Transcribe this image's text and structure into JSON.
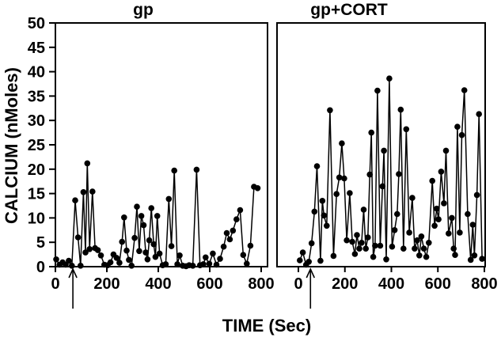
{
  "figure": {
    "x_axis_label": "TIME (Sec)",
    "y_axis_label": "CALCIUM (nMoles)"
  },
  "colors": {
    "trace": "#000000",
    "marker": "#000000",
    "axis": "#000000",
    "background": "#ffffff"
  },
  "chart_data": [
    {
      "type": "line",
      "title": "gp",
      "xlabel": "TIME (Sec)",
      "ylabel": "CALCIUM (nMoles)",
      "xlim": [
        0,
        800
      ],
      "ylim": [
        0,
        50
      ],
      "x_ticks": [
        0,
        200,
        400,
        600,
        800
      ],
      "y_ticks": [
        0,
        5,
        10,
        15,
        20,
        25,
        30,
        35,
        40,
        45,
        50
      ],
      "show_y_tick_labels": true,
      "grid": false,
      "marker": "filled-circle",
      "stimulus_arrow_x": 68,
      "x": [
        3,
        16,
        28,
        40,
        52,
        64,
        77,
        88,
        98,
        109,
        117,
        124,
        133,
        144,
        154,
        165,
        177,
        190,
        203,
        214,
        226,
        238,
        249,
        259,
        267,
        277,
        286,
        296,
        308,
        317,
        326,
        334,
        343,
        351,
        358,
        365,
        373,
        382,
        389,
        396,
        405,
        417,
        429,
        441,
        451,
        462,
        474,
        483,
        495,
        508,
        520,
        534,
        549,
        562,
        575,
        584,
        598,
        612,
        626,
        640,
        654,
        666,
        678,
        690,
        704,
        718,
        730,
        744,
        758,
        772,
        786
      ],
      "y": [
        1.5,
        0.4,
        0.9,
        0.4,
        1.2,
        0.2,
        13.6,
        6.0,
        0.2,
        15.3,
        2.9,
        21.2,
        3.6,
        15.4,
        3.8,
        3.4,
        2.3,
        0.4,
        0.3,
        0.9,
        2.5,
        1.8,
        0.8,
        5.1,
        10.1,
        3.3,
        1.4,
        0.2,
        5.9,
        12.3,
        3.2,
        10.4,
        8.5,
        2.9,
        1.5,
        5.4,
        12.0,
        4.6,
        2.0,
        10.4,
        2.7,
        0.3,
        0.5,
        13.9,
        4.2,
        19.7,
        0.5,
        2.3,
        0.2,
        0.1,
        0.3,
        0.2,
        19.9,
        0.3,
        0.5,
        1.9,
        0.6,
        2.7,
        0.4,
        1.6,
        4.1,
        6.9,
        5.6,
        7.4,
        9.7,
        11.6,
        2.4,
        0.6,
        4.3,
        16.4,
        16.1
      ]
    },
    {
      "type": "line",
      "title": "gp+CORT",
      "xlabel": "TIME (Sec)",
      "ylabel": "CALCIUM (nMoles)",
      "xlim": [
        0,
        800
      ],
      "ylim": [
        0,
        50
      ],
      "x_ticks": [
        0,
        200,
        400,
        600,
        800
      ],
      "y_ticks": [
        0,
        5,
        10,
        15,
        20,
        25,
        30,
        35,
        40,
        45,
        50
      ],
      "show_y_tick_labels": false,
      "grid": false,
      "marker": "filled-circle",
      "stimulus_arrow_x": 52,
      "x": [
        6,
        19,
        33,
        45,
        57,
        69,
        80,
        95,
        103,
        110,
        122,
        136,
        151,
        164,
        176,
        187,
        197,
        208,
        221,
        232,
        243,
        252,
        262,
        272,
        281,
        290,
        299,
        307,
        314,
        322,
        330,
        340,
        352,
        362,
        368,
        378,
        391,
        403,
        414,
        425,
        432,
        440,
        452,
        464,
        477,
        490,
        500,
        511,
        520,
        529,
        540,
        550,
        561,
        576,
        586,
        595,
        603,
        614,
        626,
        635,
        646,
        660,
        668,
        674,
        684,
        694,
        703,
        714,
        728,
        741,
        750,
        757,
        768,
        777,
        790
      ],
      "y": [
        1.3,
        2.9,
        0.4,
        1.0,
        4.8,
        11.3,
        20.6,
        1.2,
        13.5,
        10.5,
        8.4,
        32.1,
        2.2,
        14.9,
        18.3,
        25.3,
        18.1,
        5.4,
        15.1,
        5.1,
        2.6,
        6.5,
        3.7,
        4.9,
        11.7,
        3.7,
        6.0,
        18.9,
        27.5,
        2.0,
        4.3,
        36.1,
        4.3,
        16.5,
        23.8,
        1.5,
        38.6,
        4.1,
        7.5,
        10.8,
        19.0,
        32.2,
        3.7,
        28.2,
        7.0,
        14.1,
        3.7,
        5.4,
        2.3,
        6.2,
        3.7,
        2.0,
        4.9,
        17.6,
        8.4,
        11.9,
        9.7,
        19.5,
        13.0,
        23.8,
        6.8,
        10.0,
        3.7,
        2.4,
        28.7,
        7.0,
        27.0,
        36.2,
        10.8,
        1.4,
        8.6,
        2.3,
        14.7,
        31.3,
        1.6
      ]
    }
  ]
}
